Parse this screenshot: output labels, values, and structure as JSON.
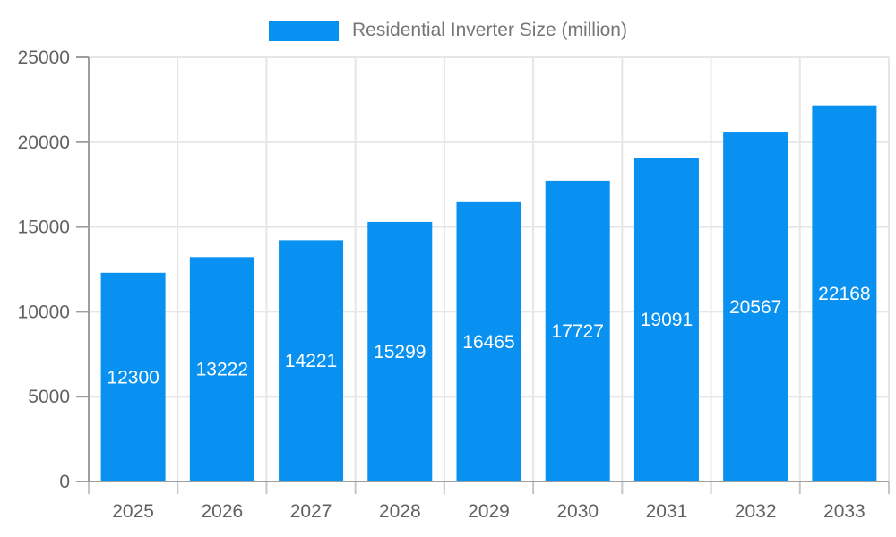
{
  "chart_data": {
    "type": "bar",
    "title": "Residential Inverter Size (million)",
    "categories": [
      "2025",
      "2026",
      "2027",
      "2028",
      "2029",
      "2030",
      "2031",
      "2032",
      "2033"
    ],
    "values": [
      12300,
      13222,
      14221,
      15299,
      16465,
      17727,
      19091,
      20567,
      22168
    ],
    "xlabel": "",
    "ylabel": "",
    "ylim": [
      0,
      25000
    ],
    "yticks": [
      0,
      5000,
      10000,
      15000,
      20000,
      25000
    ],
    "legend_position": "top-center",
    "grid": "horizontal-and-vertical",
    "value_label_position": "inside-center",
    "colors": {
      "bar": "#0991f2",
      "grid": "#e6e6e6",
      "axis": "#9e9e9e",
      "x_tick_mark": "#c6c6c6",
      "tick_label": "#616161",
      "legend_text": "#757575",
      "value_label": "#ffffff",
      "background": "#ffffff"
    }
  }
}
